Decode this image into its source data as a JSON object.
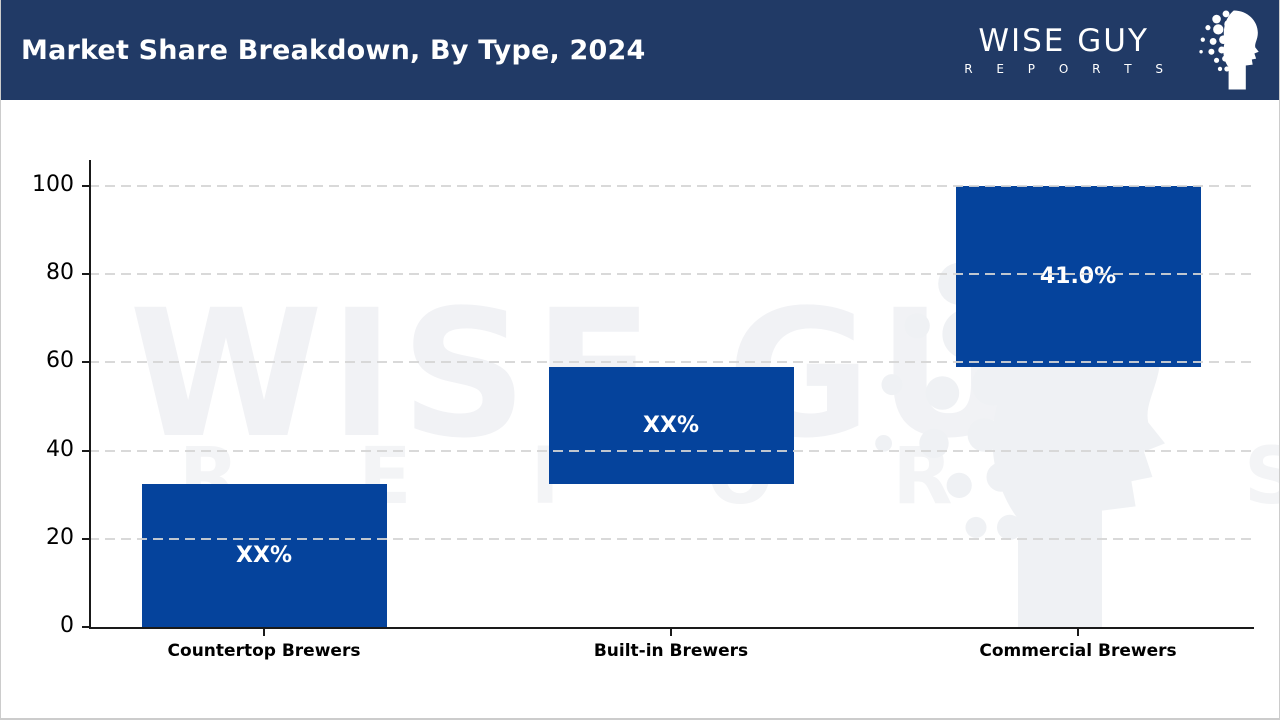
{
  "header": {
    "title": "Market Share Breakdown, By Type, 2024",
    "bg_color": "#213A66",
    "logo": {
      "line1": "WISE GUY",
      "line2": "R E P O R T S"
    }
  },
  "watermark": {
    "line1": "WISE GUY",
    "line2": "R E P O R T S"
  },
  "chart_data": {
    "type": "bar",
    "subtype": "floating-segment-bars (waterfall style)",
    "title": "Market Share Breakdown, By Type, 2024",
    "categories": [
      "Countertop Brewers",
      "Built-in Brewers",
      "Commercial Brewers"
    ],
    "segments": [
      {
        "category": "Countertop Brewers",
        "start": 0,
        "end": 32.5,
        "label": "XX%"
      },
      {
        "category": "Built-in Brewers",
        "start": 32.5,
        "end": 59,
        "label": "XX%"
      },
      {
        "category": "Commercial Brewers",
        "start": 59,
        "end": 100,
        "label": "41.0%"
      }
    ],
    "ylim": [
      0,
      100
    ],
    "yticks": [
      0,
      20,
      40,
      60,
      80,
      100
    ],
    "grid": "horizontal dashed, drawn over bars",
    "grid_color": "#d5d5d5",
    "bar_color": "#05439C",
    "axis_color": "#1a1a1a",
    "bar_value_color": "#ffffff",
    "legend": null
  }
}
